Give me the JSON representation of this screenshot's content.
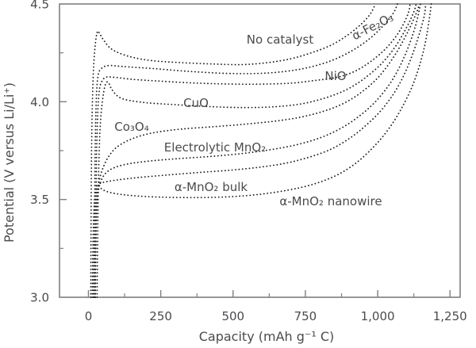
{
  "figure": {
    "background": "#ffffff"
  },
  "colors": {
    "axis": "#7d7f82",
    "text": "#4a4b4d",
    "curve": "#1e1e1e"
  },
  "chart_data": {
    "type": "line",
    "style": "dotted",
    "title": "",
    "xlabel": "Capacity (mAh g⁻¹ C)",
    "ylabel": "Potential (V versus Li/Li⁺)",
    "xlim": [
      -100,
      1285
    ],
    "ylim": [
      3.0,
      4.5
    ],
    "grid": false,
    "legend": "inline-labels",
    "x_ticks": {
      "major": [
        0,
        250,
        500,
        750,
        1000,
        1250
      ],
      "labels": [
        "0",
        "250",
        "500",
        "750",
        "1,000",
        "1,250"
      ],
      "minor": [
        125,
        375,
        625,
        875,
        1125
      ]
    },
    "y_ticks": {
      "major": [
        3.0,
        3.5,
        4.0,
        4.5
      ],
      "labels": [
        "3.0",
        "3.5",
        "4.0",
        "4.5"
      ],
      "minor": [
        3.25,
        3.75,
        4.25
      ]
    },
    "series": [
      {
        "name": "No catalyst",
        "points": [
          [
            8,
            3.0
          ],
          [
            10,
            3.6
          ],
          [
            13,
            3.95
          ],
          [
            18,
            4.18
          ],
          [
            25,
            4.31
          ],
          [
            32,
            4.36
          ],
          [
            40,
            4.345
          ],
          [
            55,
            4.31
          ],
          [
            75,
            4.275
          ],
          [
            105,
            4.25
          ],
          [
            150,
            4.228
          ],
          [
            220,
            4.21
          ],
          [
            320,
            4.2
          ],
          [
            430,
            4.193
          ],
          [
            530,
            4.19
          ],
          [
            620,
            4.2
          ],
          [
            700,
            4.22
          ],
          [
            770,
            4.25
          ],
          [
            840,
            4.29
          ],
          [
            900,
            4.345
          ],
          [
            945,
            4.4
          ],
          [
            975,
            4.45
          ],
          [
            992,
            4.5
          ]
        ]
      },
      {
        "name": "α-Fe₂O₃",
        "points": [
          [
            20,
            3.0
          ],
          [
            23,
            3.7
          ],
          [
            27,
            4.0
          ],
          [
            33,
            4.13
          ],
          [
            45,
            4.17
          ],
          [
            70,
            4.185
          ],
          [
            120,
            4.18
          ],
          [
            220,
            4.17
          ],
          [
            350,
            4.155
          ],
          [
            480,
            4.145
          ],
          [
            590,
            4.145
          ],
          [
            680,
            4.155
          ],
          [
            760,
            4.175
          ],
          [
            840,
            4.21
          ],
          [
            910,
            4.26
          ],
          [
            970,
            4.32
          ],
          [
            1020,
            4.39
          ],
          [
            1055,
            4.455
          ],
          [
            1068,
            4.5
          ]
        ]
      },
      {
        "name": "NiO",
        "points": [
          [
            24,
            3.0
          ],
          [
            27,
            3.6
          ],
          [
            31,
            3.9
          ],
          [
            37,
            4.05
          ],
          [
            45,
            4.1
          ],
          [
            60,
            4.125
          ],
          [
            90,
            4.125
          ],
          [
            150,
            4.115
          ],
          [
            250,
            4.105
          ],
          [
            380,
            4.095
          ],
          [
            500,
            4.09
          ],
          [
            600,
            4.09
          ],
          [
            700,
            4.095
          ],
          [
            790,
            4.11
          ],
          [
            860,
            4.125
          ],
          [
            920,
            4.155
          ],
          [
            975,
            4.205
          ],
          [
            1030,
            4.275
          ],
          [
            1075,
            4.36
          ],
          [
            1105,
            4.45
          ],
          [
            1112,
            4.5
          ]
        ]
      },
      {
        "name": "CuO",
        "points": [
          [
            30,
            3.0
          ],
          [
            34,
            3.55
          ],
          [
            40,
            3.85
          ],
          [
            48,
            4.0
          ],
          [
            58,
            4.085
          ],
          [
            68,
            4.1
          ],
          [
            80,
            4.065
          ],
          [
            100,
            4.03
          ],
          [
            130,
            4.01
          ],
          [
            200,
            3.995
          ],
          [
            300,
            3.985
          ],
          [
            420,
            3.975
          ],
          [
            540,
            3.97
          ],
          [
            650,
            3.975
          ],
          [
            740,
            3.99
          ],
          [
            820,
            4.02
          ],
          [
            890,
            4.06
          ],
          [
            950,
            4.115
          ],
          [
            1010,
            4.19
          ],
          [
            1060,
            4.28
          ],
          [
            1100,
            4.38
          ],
          [
            1125,
            4.46
          ],
          [
            1133,
            4.5
          ]
        ]
      },
      {
        "name": "Co₃O₄",
        "points": [
          [
            24,
            3.0
          ],
          [
            27,
            3.35
          ],
          [
            31,
            3.52
          ],
          [
            38,
            3.6
          ],
          [
            50,
            3.66
          ],
          [
            70,
            3.72
          ],
          [
            100,
            3.77
          ],
          [
            150,
            3.81
          ],
          [
            220,
            3.84
          ],
          [
            320,
            3.86
          ],
          [
            430,
            3.872
          ],
          [
            540,
            3.885
          ],
          [
            640,
            3.9
          ],
          [
            730,
            3.92
          ],
          [
            810,
            3.95
          ],
          [
            880,
            3.99
          ],
          [
            945,
            4.05
          ],
          [
            1005,
            4.13
          ],
          [
            1060,
            4.24
          ],
          [
            1105,
            4.36
          ],
          [
            1138,
            4.47
          ],
          [
            1142,
            4.5
          ]
        ]
      },
      {
        "name": "Electrolytic MnO₂",
        "points": [
          [
            21,
            3.0
          ],
          [
            24,
            3.3
          ],
          [
            28,
            3.47
          ],
          [
            35,
            3.55
          ],
          [
            45,
            3.6
          ],
          [
            60,
            3.635
          ],
          [
            85,
            3.66
          ],
          [
            130,
            3.68
          ],
          [
            200,
            3.695
          ],
          [
            300,
            3.708
          ],
          [
            420,
            3.72
          ],
          [
            530,
            3.735
          ],
          [
            630,
            3.755
          ],
          [
            720,
            3.78
          ],
          [
            800,
            3.815
          ],
          [
            870,
            3.862
          ],
          [
            935,
            3.925
          ],
          [
            995,
            4.005
          ],
          [
            1050,
            4.11
          ],
          [
            1095,
            4.24
          ],
          [
            1130,
            4.385
          ],
          [
            1148,
            4.5
          ]
        ]
      },
      {
        "name": "α-MnO₂ bulk",
        "points": [
          [
            17,
            3.0
          ],
          [
            20,
            3.3
          ],
          [
            24,
            3.48
          ],
          [
            30,
            3.555
          ],
          [
            40,
            3.582
          ],
          [
            60,
            3.59
          ],
          [
            100,
            3.6
          ],
          [
            170,
            3.612
          ],
          [
            270,
            3.625
          ],
          [
            380,
            3.638
          ],
          [
            490,
            3.65
          ],
          [
            590,
            3.665
          ],
          [
            680,
            3.685
          ],
          [
            760,
            3.715
          ],
          [
            835,
            3.755
          ],
          [
            900,
            3.81
          ],
          [
            960,
            3.88
          ],
          [
            1020,
            3.97
          ],
          [
            1075,
            4.09
          ],
          [
            1120,
            4.24
          ],
          [
            1158,
            4.42
          ],
          [
            1166,
            4.5
          ]
        ]
      },
      {
        "name": "α-MnO₂ nanowire",
        "points": [
          [
            13,
            3.0
          ],
          [
            16,
            3.3
          ],
          [
            20,
            3.48
          ],
          [
            26,
            3.56
          ],
          [
            34,
            3.575
          ],
          [
            45,
            3.555
          ],
          [
            65,
            3.54
          ],
          [
            95,
            3.53
          ],
          [
            150,
            3.52
          ],
          [
            250,
            3.512
          ],
          [
            380,
            3.51
          ],
          [
            500,
            3.515
          ],
          [
            600,
            3.528
          ],
          [
            690,
            3.548
          ],
          [
            770,
            3.575
          ],
          [
            845,
            3.615
          ],
          [
            910,
            3.67
          ],
          [
            970,
            3.745
          ],
          [
            1030,
            3.845
          ],
          [
            1080,
            3.96
          ],
          [
            1125,
            4.1
          ],
          [
            1160,
            4.27
          ],
          [
            1180,
            4.44
          ],
          [
            1185,
            4.5
          ]
        ]
      }
    ]
  }
}
